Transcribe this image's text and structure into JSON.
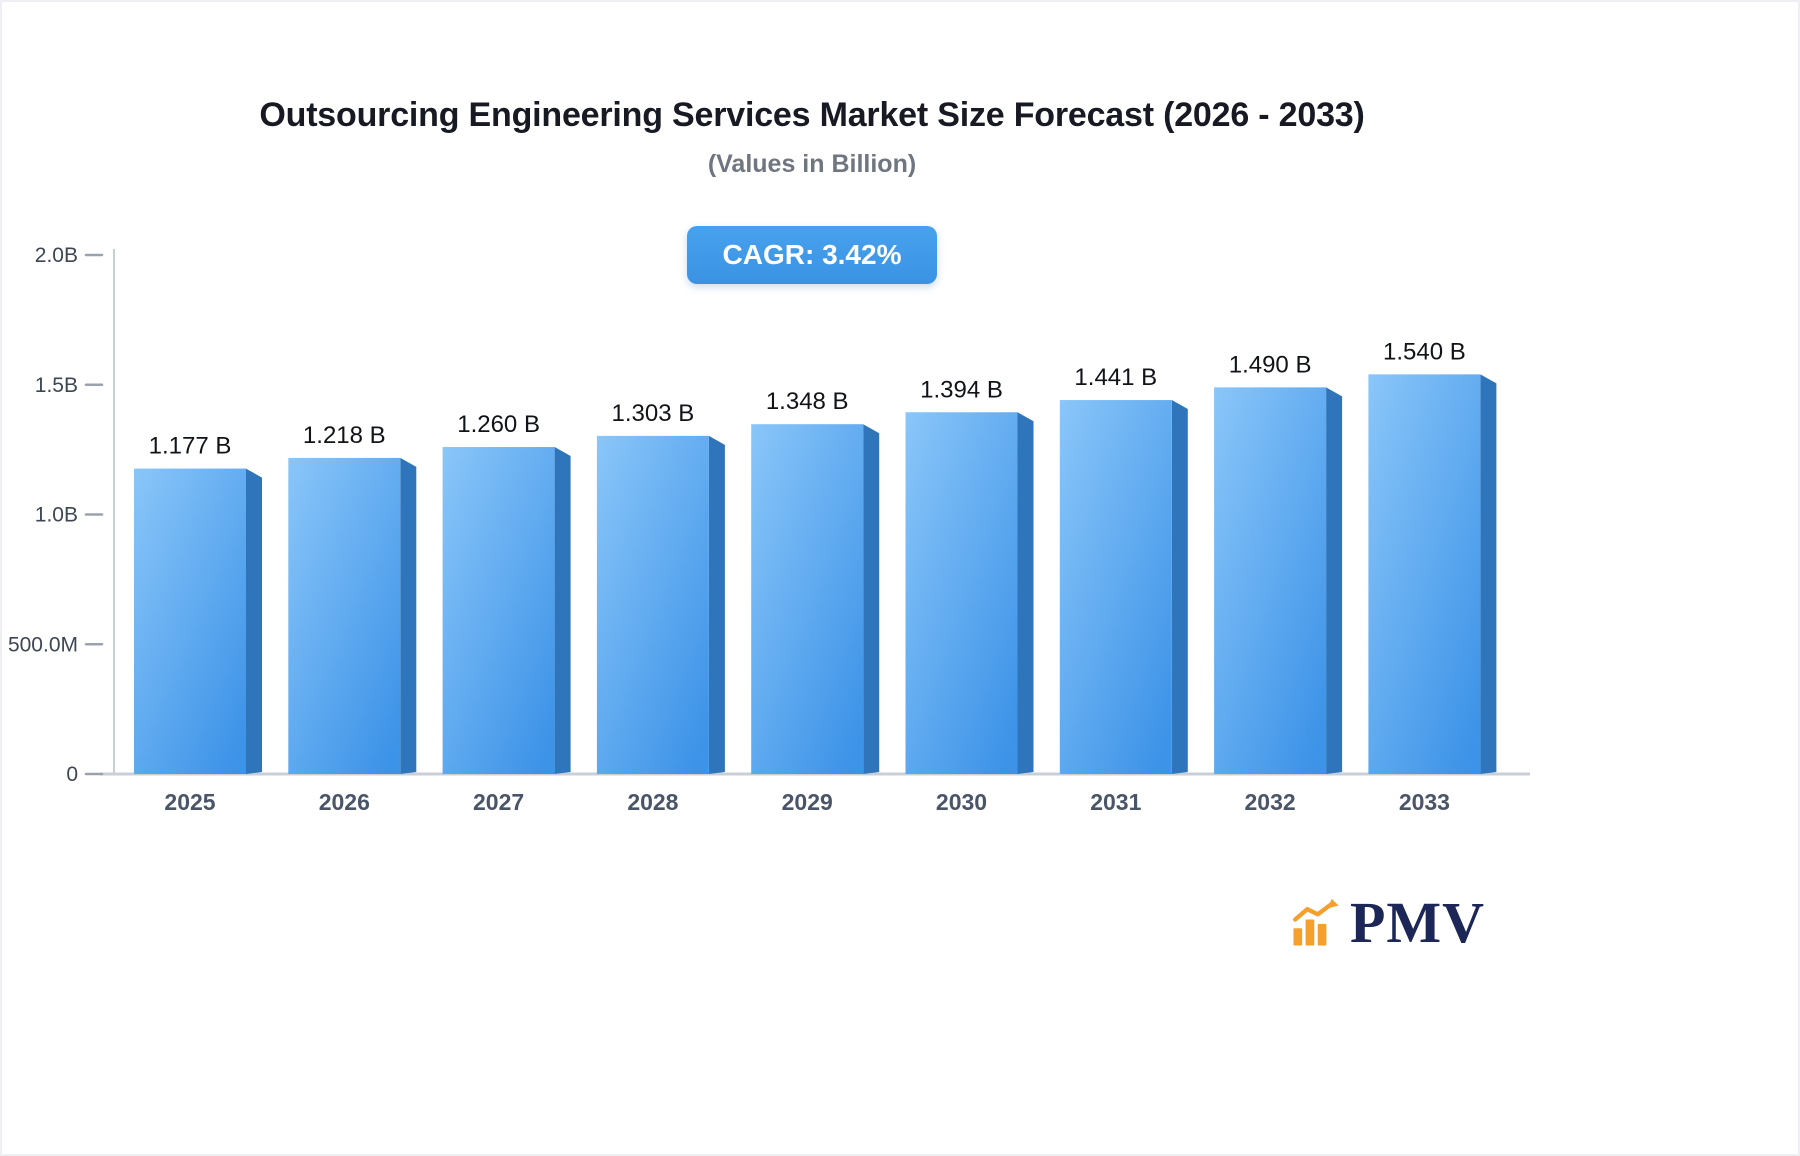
{
  "header": {
    "title": "Outsourcing Engineering Services Market Size Forecast (2026 - 2033)",
    "subtitle": "(Values in Billion)",
    "cagr_label": "CAGR: 3.42%"
  },
  "logo": {
    "text": "PMV",
    "icon": "bar-chart-icon"
  },
  "colors": {
    "bar_front_light": "#8ac6f9",
    "bar_front": "#3d93e8",
    "bar_side": "#2e75bb",
    "badge_blue": "#3f9cea",
    "axis": "#c9cfd7",
    "tick_dash": "#9aa3ad",
    "y_label": "#3d4754",
    "x_label": "#4a5568",
    "value_label": "#101318",
    "logo_orange": "#f59f2d",
    "logo_navy": "#1d2757"
  },
  "chart_data": {
    "type": "bar",
    "title": "Outsourcing Engineering Services Market Size Forecast (2026 - 2033)",
    "subtitle": "(Values in Billion)",
    "unit": "Billion",
    "cagr": "3.42%",
    "categories": [
      "2025",
      "2026",
      "2027",
      "2028",
      "2029",
      "2030",
      "2031",
      "2032",
      "2033"
    ],
    "values": [
      1.177,
      1.218,
      1.26,
      1.303,
      1.348,
      1.394,
      1.441,
      1.49,
      1.54
    ],
    "value_labels": [
      "1.177 B",
      "1.218 B",
      "1.260 B",
      "1.303 B",
      "1.348 B",
      "1.394 B",
      "1.441 B",
      "1.490 B",
      "1.540 B"
    ],
    "xlabel": "",
    "ylabel": "",
    "ylim": [
      0,
      2.0
    ],
    "y_ticks": [
      {
        "label": "2.0B",
        "value": 2.0
      },
      {
        "label": "1.5B",
        "value": 1.5
      },
      {
        "label": "1.0B",
        "value": 1.0
      },
      {
        "label": "500.0M",
        "value": 0.5
      },
      {
        "label": "0",
        "value": 0
      }
    ],
    "grid": false,
    "legend": "none",
    "bar_style": "3d-blue"
  }
}
